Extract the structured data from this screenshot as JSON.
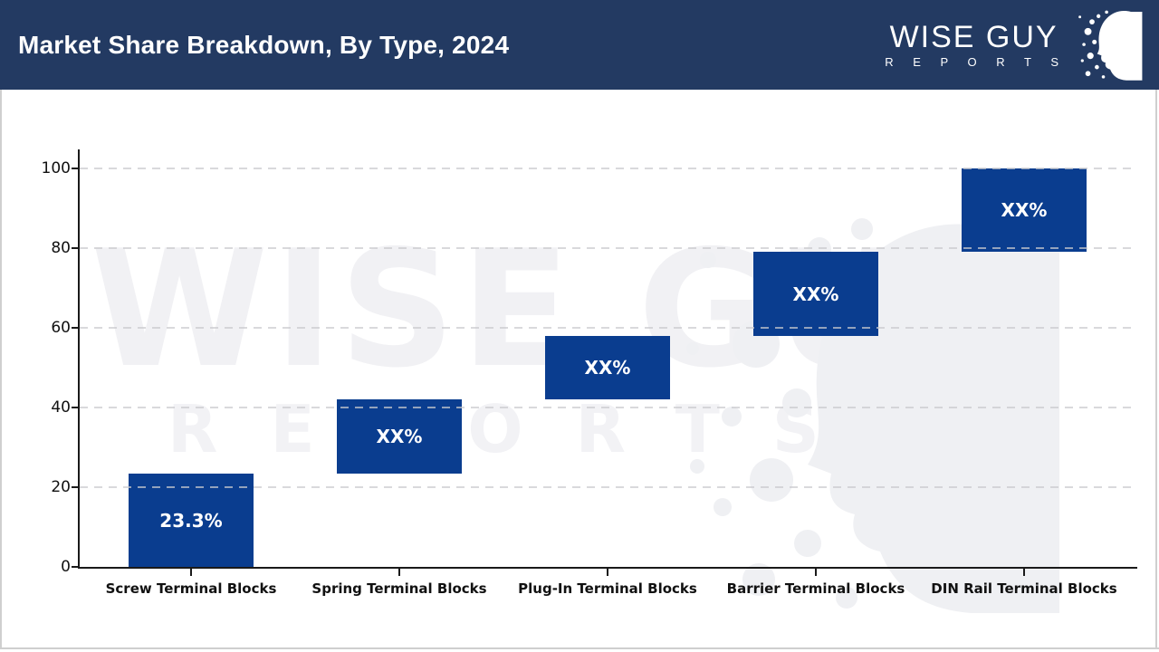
{
  "header": {
    "title": "Market Share Breakdown, By Type, 2024",
    "logo": {
      "line1": "WISE GUY",
      "line2": "R E P O R T S"
    }
  },
  "watermark": {
    "line1": "WISE GUY",
    "line2": "REPORTS"
  },
  "chart_data": {
    "type": "bar",
    "variant": "waterfall-floating-bars",
    "title": "Market Share Breakdown, By Type, 2024",
    "categories": [
      "Screw Terminal Blocks",
      "Spring Terminal Blocks",
      "Plug-In Terminal Blocks",
      "Barrier Terminal Blocks",
      "DIN Rail Terminal Blocks"
    ],
    "segments": [
      {
        "label": "23.3%",
        "start": 0,
        "end": 23.3
      },
      {
        "label": "XX%",
        "start": 23.3,
        "end": 42
      },
      {
        "label": "XX%",
        "start": 42,
        "end": 58
      },
      {
        "label": "XX%",
        "start": 58,
        "end": 79
      },
      {
        "label": "XX%",
        "start": 79,
        "end": 100
      }
    ],
    "yticks": [
      0,
      20,
      40,
      60,
      80,
      100
    ],
    "ylim": [
      0,
      100
    ],
    "xlabel": "",
    "ylabel": "",
    "grid": "horizontal-dashed",
    "legend": "none",
    "bar_color": "#0a3d8f",
    "bar_label_color": "#ffffff"
  },
  "colors": {
    "header_bg": "#233a62",
    "bar": "#0a3d8f",
    "grid": "#d9d9d9",
    "axis": "#1a1a1a",
    "card_border": "#cfcfcf",
    "watermark": "#f1f1f4"
  }
}
